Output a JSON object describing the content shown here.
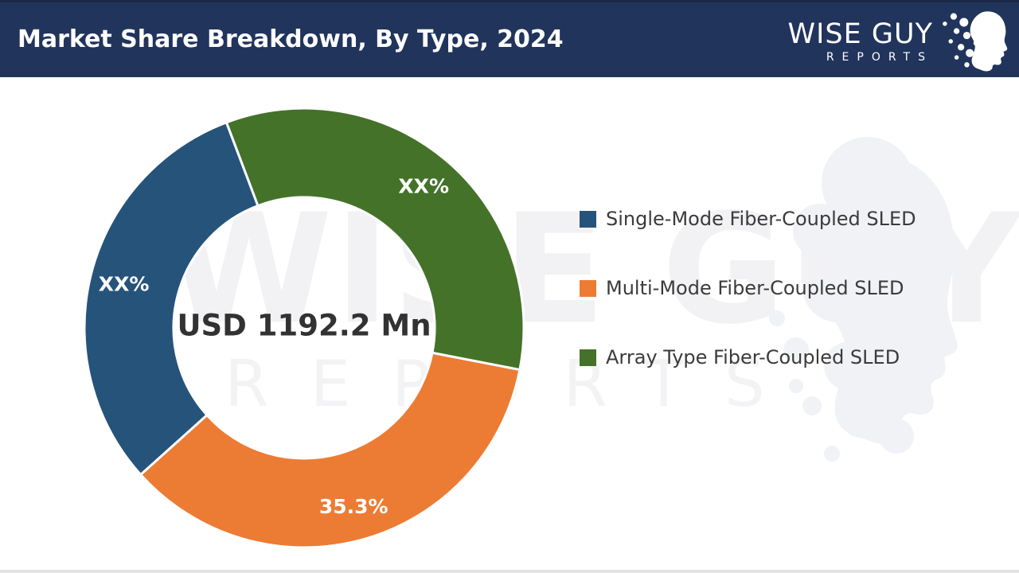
{
  "header": {
    "title": "Market Share Breakdown, By Type, 2024",
    "logo": {
      "line1": "WISE GUY",
      "line2": "REPORTS"
    }
  },
  "watermark": {
    "line1": "WISE GUY",
    "line2": "REPORTS"
  },
  "chart_data": {
    "type": "donut",
    "title": "Market Share Breakdown, By Type, 2024",
    "center_label": "USD 1192.2 Mn",
    "series": [
      {
        "name": "Single-Mode Fiber-Coupled SLED",
        "value": 30.9,
        "display_label": "XX%",
        "color": "#26537a"
      },
      {
        "name": "Multi-Mode Fiber-Coupled SLED",
        "value": 35.3,
        "display_label": "35.3%",
        "color": "#ec7c33"
      },
      {
        "name": "Array Type Fiber-Coupled SLED",
        "value": 33.8,
        "display_label": "XX%",
        "color": "#447229"
      }
    ],
    "start_angle_deg": 110.7,
    "direction": "counterclockwise",
    "inner_radius_ratio": 0.594,
    "legend_position": "right",
    "label_color": "#ffffff",
    "segment_border_color": "#ffffff"
  },
  "colors": {
    "header_bg": "#21345c",
    "watermark": "#f2f2f5",
    "center_text": "#323232",
    "legend_text": "#3b3b3b"
  }
}
